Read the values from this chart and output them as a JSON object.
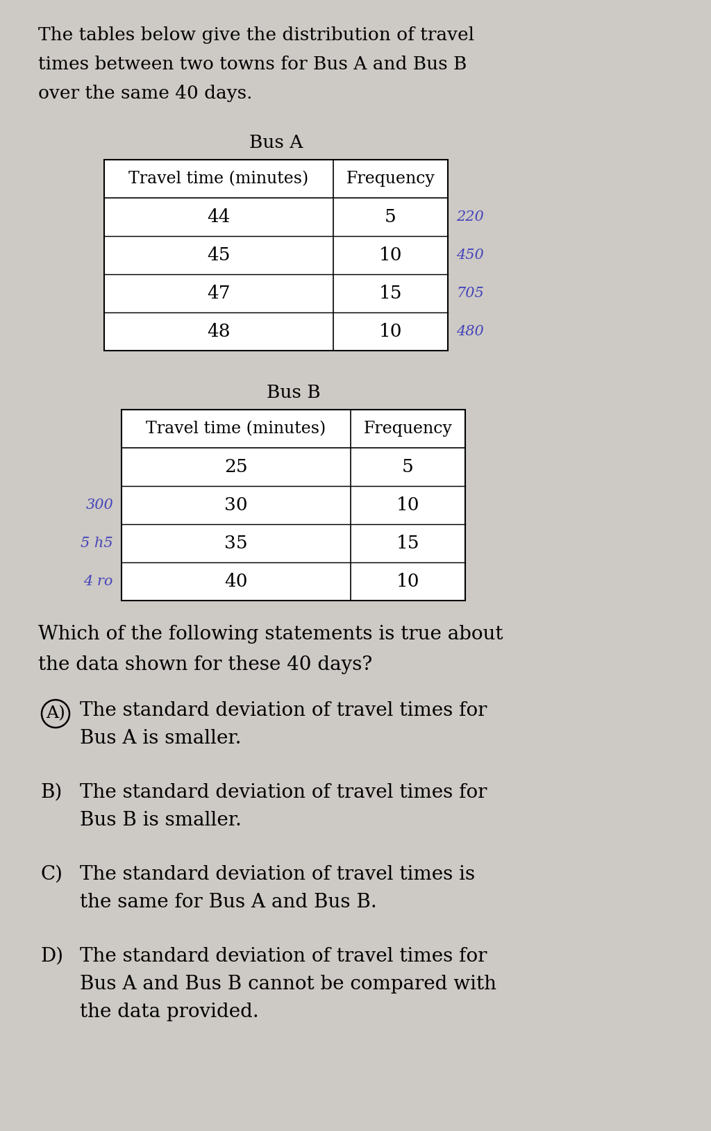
{
  "bg_color": "#cdc9c4",
  "intro_text_lines": [
    "The tables below give the distribution of travel",
    "times between two towns for Bus A and Bus B",
    "over the same 40 days."
  ],
  "bus_a_title": "Bus A",
  "bus_a_col1": "Travel time (minutes)",
  "bus_a_col2": "Frequency",
  "bus_a_rows": [
    [
      "44",
      "5"
    ],
    [
      "45",
      "10"
    ],
    [
      "47",
      "15"
    ],
    [
      "48",
      "10"
    ]
  ],
  "bus_a_side_notes": [
    "220",
    "450",
    "705",
    "480"
  ],
  "bus_b_title": "Bus B",
  "bus_b_col1": "Travel time (minutes)",
  "bus_b_col2": "Frequency",
  "bus_b_rows": [
    [
      "25",
      "5"
    ],
    [
      "30",
      "10"
    ],
    [
      "35",
      "15"
    ],
    [
      "40",
      "10"
    ]
  ],
  "bus_b_left_notes": [
    {
      "row": 1,
      "text": "300"
    },
    {
      "row": 2,
      "text": "5 h5"
    },
    {
      "row": 3,
      "text": "4 ro"
    }
  ],
  "question_text_lines": [
    "Which of the following statements is true about",
    "the data shown for these 40 days?"
  ],
  "options": [
    {
      "label": "A)",
      "text_lines": [
        "The standard deviation of travel times for",
        "Bus A is smaller."
      ],
      "circled": true
    },
    {
      "label": "B)",
      "text_lines": [
        "The standard deviation of travel times for",
        "Bus B is smaller."
      ],
      "circled": false
    },
    {
      "label": "C)",
      "text_lines": [
        "The standard deviation of travel times is",
        "the same for Bus A and Bus B."
      ],
      "circled": false
    },
    {
      "label": "D)",
      "text_lines": [
        "The standard deviation of travel times for",
        "Bus A and Bus B cannot be compared with",
        "the data provided."
      ],
      "circled": false
    }
  ],
  "intro_fontsize": 19,
  "table_header_fontsize": 17,
  "table_cell_fontsize": 19,
  "title_fontsize": 19,
  "sidenote_fontsize": 15,
  "question_fontsize": 20,
  "option_fontsize": 20
}
